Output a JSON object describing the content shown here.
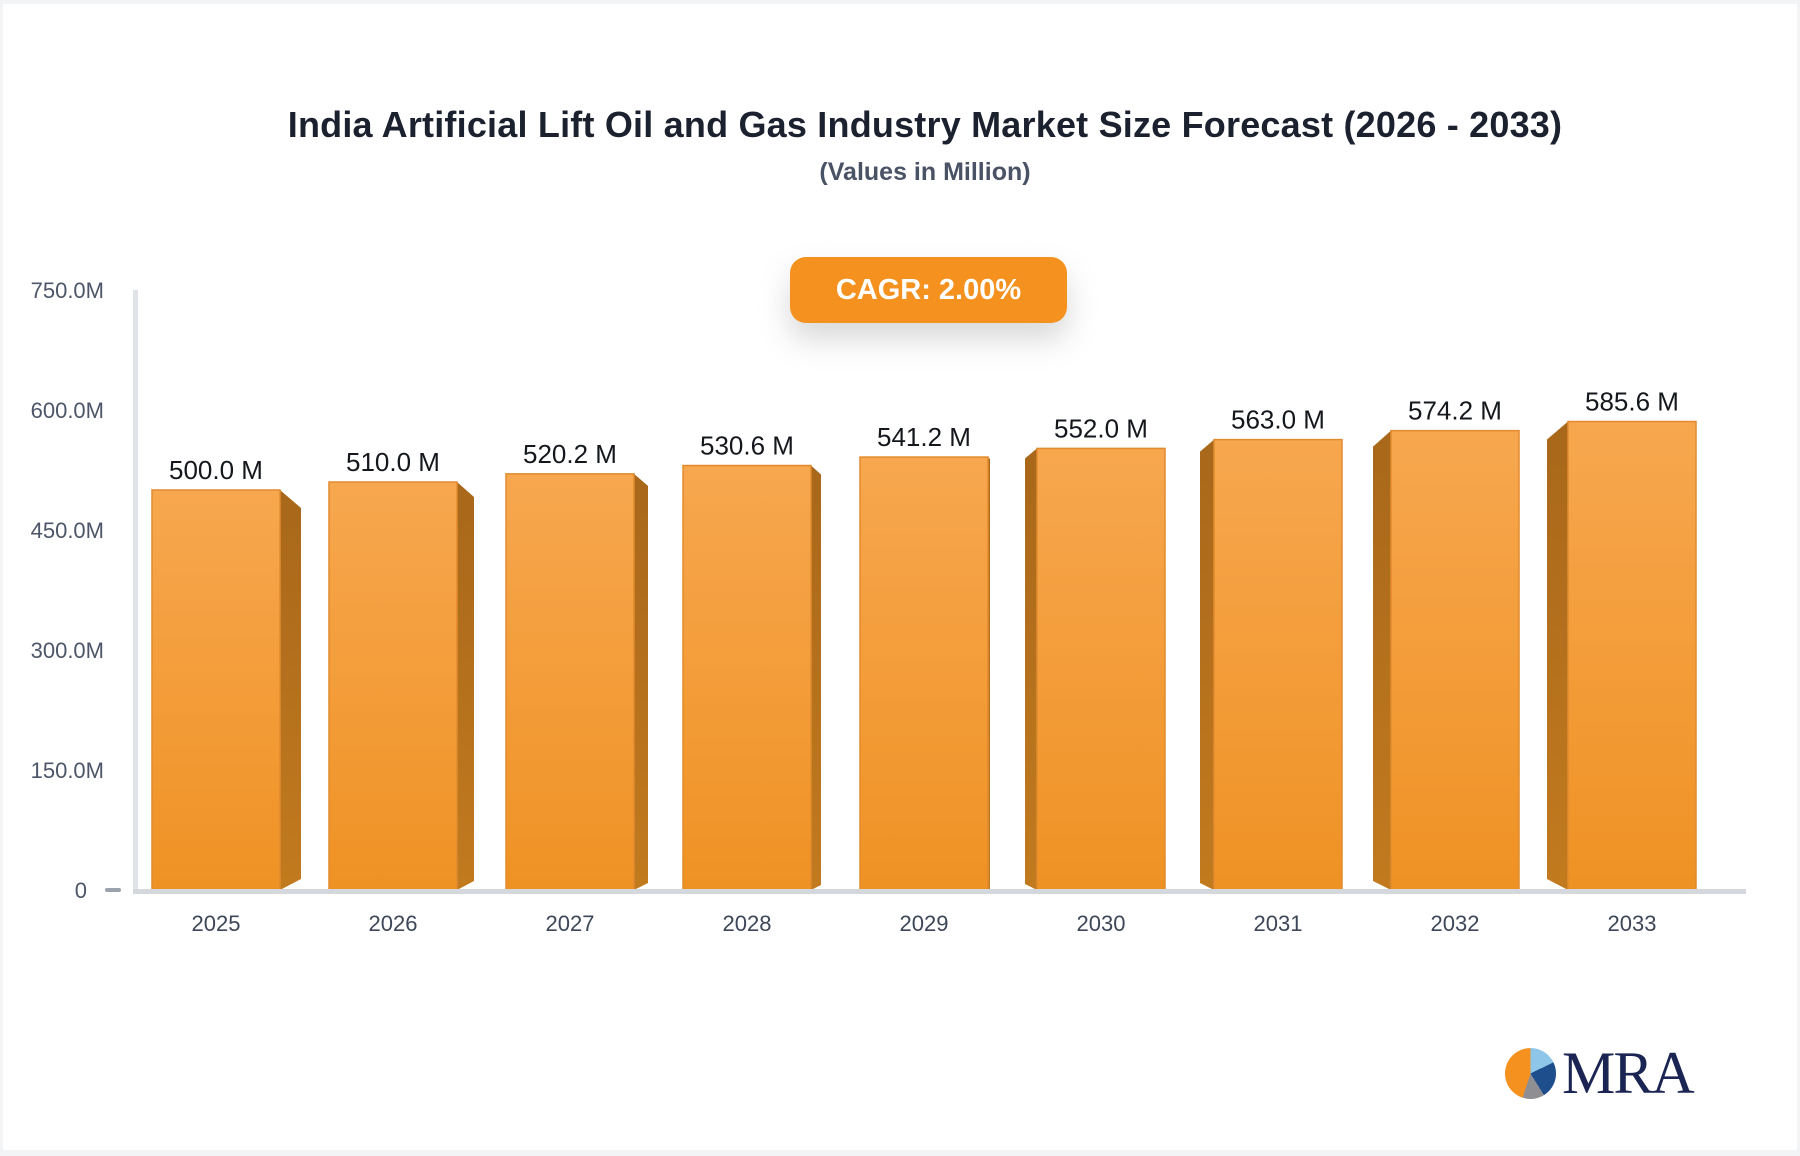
{
  "header": {
    "title": "India Artificial Lift Oil and Gas Industry Market Size Forecast (2026 - 2033)",
    "subtitle": "(Values in Million)",
    "cagr_badge": "CAGR: 2.00%"
  },
  "branding": {
    "logo_text": "MRA",
    "logo_text_color": "#1b2553",
    "logo_pie_colors": {
      "orange": "#f5911e",
      "light_blue": "#8ec6e9",
      "dark_blue": "#1e4e8c",
      "gray": "#8e8e93"
    }
  },
  "chart_data": {
    "type": "bar",
    "title": "India Artificial Lift Oil and Gas Industry Market Size Forecast (2026 - 2033)",
    "subtitle": "(Values in Million)",
    "cagr_percent": 2.0,
    "unit": "Million",
    "categories": [
      "2025",
      "2026",
      "2027",
      "2028",
      "2029",
      "2030",
      "2031",
      "2032",
      "2033"
    ],
    "values_millions": [
      500.0,
      510.0,
      520.2,
      530.6,
      541.2,
      552.0,
      563.0,
      574.2,
      585.6
    ],
    "value_labels": [
      "500.0 M",
      "510.0 M",
      "520.2 M",
      "530.6 M",
      "541.2 M",
      "552.0 M",
      "563.0 M",
      "574.2 M",
      "585.6 M"
    ],
    "ylim_millions": [
      0,
      750
    ],
    "y_ticks_millions": [
      0,
      150,
      300,
      450,
      600,
      750
    ],
    "y_tick_labels": [
      "0",
      "150.0M",
      "300.0M",
      "450.0M",
      "600.0M",
      "750.0M"
    ],
    "grid": false,
    "legend": false,
    "bar_style": "3d-perspective",
    "colors": {
      "accent": "#f5911e",
      "bar_face_top": "#f7a74f",
      "bar_face_bottom": "#ef9224",
      "bar_side_top": "#a8671a",
      "bar_side_bottom": "#c27a1e",
      "bar_edge": "#e18b2e",
      "axis_line": "#e0e3e7",
      "baseline": "#d4d7db",
      "tick_dash": "#9aa3ae",
      "y_tick_text": "#4d5668",
      "x_tick_text": "#3d4759",
      "value_text": "#14171c"
    }
  }
}
